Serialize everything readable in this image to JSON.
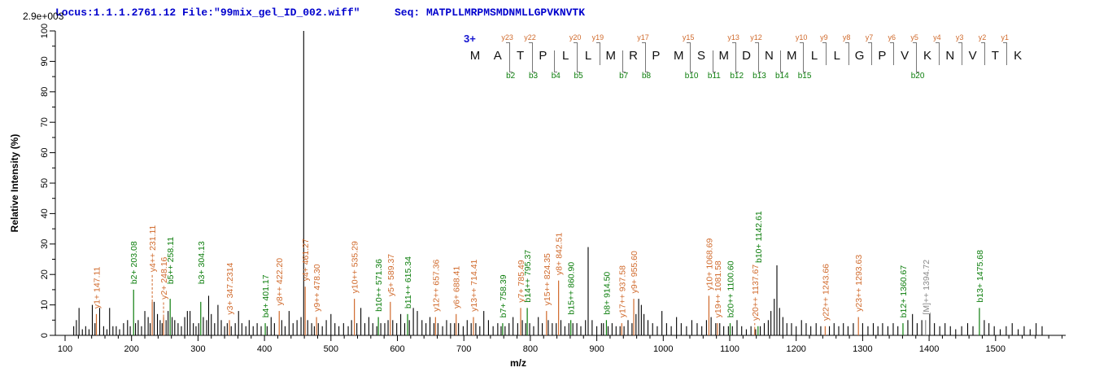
{
  "header": {
    "locus_file": "Locus:1.1.1.2761.12 File:\"99mix_gel_ID_002.wiff\"",
    "seq_label": "Seq: MATPLLMRPMSMDNMLLGPVKNVTK",
    "intensity_scale": "2.9e+003"
  },
  "peptide": {
    "charge": "3+",
    "sequence": "MATPLLMRPMSMDNMLLGPVKNVTK",
    "fragments": [
      {
        "after": 2,
        "y": "y23",
        "b": "b2"
      },
      {
        "after": 3,
        "y": "y22",
        "b": "b3"
      },
      {
        "after": 4,
        "y": "",
        "b": "b4"
      },
      {
        "after": 5,
        "y": "y20",
        "b": "b5"
      },
      {
        "after": 6,
        "y": "y19",
        "b": ""
      },
      {
        "after": 7,
        "y": "",
        "b": "b7"
      },
      {
        "after": 8,
        "y": "y17",
        "b": "b8"
      },
      {
        "after": 10,
        "y": "y15",
        "b": "b10"
      },
      {
        "after": 11,
        "y": "",
        "b": "b11"
      },
      {
        "after": 12,
        "y": "y13",
        "b": "b12"
      },
      {
        "after": 13,
        "y": "y12",
        "b": "b13"
      },
      {
        "after": 14,
        "y": "",
        "b": "b14"
      },
      {
        "after": 15,
        "y": "y10",
        "b": "b15"
      },
      {
        "after": 16,
        "y": "y9",
        "b": ""
      },
      {
        "after": 17,
        "y": "y8",
        "b": ""
      },
      {
        "after": 18,
        "y": "y7",
        "b": ""
      },
      {
        "after": 19,
        "y": "y6",
        "b": ""
      },
      {
        "after": 20,
        "y": "y5",
        "b": "b20"
      },
      {
        "after": 21,
        "y": "y4",
        "b": ""
      },
      {
        "after": 22,
        "y": "y3",
        "b": ""
      },
      {
        "after": 23,
        "y": "y2",
        "b": ""
      },
      {
        "after": 24,
        "y": "y1",
        "b": ""
      }
    ]
  },
  "chart_data": {
    "type": "bar",
    "subtype": "mass-spectrum",
    "title": "",
    "xlabel": "m/z",
    "ylabel": "Relative Intensity (%)",
    "xlim": [
      85,
      1605
    ],
    "ylim": [
      0,
      100
    ],
    "x_major_tick_start": 100,
    "x_major_tick_step": 100,
    "x_major_tick_end": 1500,
    "x_minor_tick_step": 20,
    "y_major_tick_step": 10,
    "y_minor_tick_step": 5,
    "grid": false,
    "colors": {
      "y": "#d06a2c",
      "b": "#0b7d0b",
      "M": "#8a8a8a",
      "peak": "#000000",
      "axis": "#000000"
    },
    "labeled_ions": [
      {
        "ion": "y1+",
        "mass": "147.11",
        "mz": 147.11,
        "series": "y",
        "h": 7,
        "label_y": 8,
        "dashed": false
      },
      {
        "ion": "b2+",
        "mass": "203.08",
        "mz": 203.08,
        "series": "b",
        "h": 15,
        "label_y": 16,
        "dashed": false
      },
      {
        "ion": "y4++",
        "mass": "231.11",
        "mz": 231.11,
        "series": "y",
        "h": 11,
        "label_y": 20,
        "dashed": true
      },
      {
        "ion": "y2+",
        "mass": "248.16",
        "mz": 248.16,
        "series": "y",
        "h": 6,
        "label_y": 11,
        "dashed": true
      },
      {
        "ion": "b5++",
        "mass": "258.11",
        "mz": 258.11,
        "series": "b",
        "h": 12,
        "label_y": 16,
        "dashed": false
      },
      {
        "ion": "b3+",
        "mass": "304.13",
        "mz": 304.13,
        "series": "b",
        "h": 11,
        "label_y": 16,
        "dashed": false
      },
      {
        "ion": "y3+",
        "mass": "347.2314",
        "mz": 347.23,
        "series": "y",
        "h": 5,
        "label_y": 6,
        "dashed": false
      },
      {
        "ion": "b4+",
        "mass": "401.17",
        "mz": 401.17,
        "series": "b",
        "h": 4,
        "label_y": 5,
        "dashed": false
      },
      {
        "ion": "y8++",
        "mass": "422.20",
        "mz": 422.2,
        "series": "y",
        "h": 8,
        "label_y": 9,
        "dashed": false
      },
      {
        "ion": "y4+",
        "mass": "461.27",
        "mz": 461.27,
        "series": "y",
        "h": 16,
        "label_y": 17,
        "dashed": false
      },
      {
        "ion": "y9++",
        "mass": "478.30",
        "mz": 478.3,
        "series": "y",
        "h": 6,
        "label_y": 7,
        "dashed": false
      },
      {
        "ion": "y10++",
        "mass": "535.29",
        "mz": 535.29,
        "series": "y",
        "h": 12,
        "label_y": 13,
        "dashed": false
      },
      {
        "ion": "b10++",
        "mass": "571.36",
        "mz": 571.36,
        "series": "b",
        "h": 6,
        "label_y": 7,
        "dashed": false
      },
      {
        "ion": "y5+",
        "mass": "589.37",
        "mz": 589.37,
        "series": "y",
        "h": 11,
        "label_y": 12,
        "dashed": false
      },
      {
        "ion": "b11++",
        "mass": "615.34",
        "mz": 615.34,
        "series": "b",
        "h": 7,
        "label_y": 8,
        "dashed": false
      },
      {
        "ion": "y12++",
        "mass": "657.36",
        "mz": 657.36,
        "series": "y",
        "h": 6,
        "label_y": 7,
        "dashed": false
      },
      {
        "ion": "y6+",
        "mass": "688.41",
        "mz": 688.41,
        "series": "y",
        "h": 7,
        "label_y": 8,
        "dashed": false
      },
      {
        "ion": "y13++",
        "mass": "714.41",
        "mz": 714.41,
        "series": "y",
        "h": 6,
        "label_y": 7,
        "dashed": false
      },
      {
        "ion": "b7+",
        "mass": "758.39",
        "mz": 758.39,
        "series": "b",
        "h": 4,
        "label_y": 5,
        "dashed": false
      },
      {
        "ion": "y7+",
        "mass": "785.49",
        "mz": 785.49,
        "series": "y",
        "h": 9,
        "label_y": 10,
        "dashed": false
      },
      {
        "ion": "b14++",
        "mass": "795.37",
        "mz": 795.37,
        "series": "b",
        "h": 9,
        "label_y": 10,
        "dashed": false
      },
      {
        "ion": "y15++",
        "mass": "824.35",
        "mz": 824.35,
        "series": "y",
        "h": 8,
        "label_y": 9,
        "dashed": false
      },
      {
        "ion": "y8+",
        "mass": "842.51",
        "mz": 842.51,
        "series": "y",
        "h": 18,
        "label_y": 19,
        "dashed": false
      },
      {
        "ion": "b15++",
        "mass": "860.90",
        "mz": 860.9,
        "series": "b",
        "h": 5,
        "label_y": 6,
        "dashed": false
      },
      {
        "ion": "b8+",
        "mass": "914.50",
        "mz": 914.5,
        "series": "b",
        "h": 5,
        "label_y": 6,
        "dashed": false
      },
      {
        "ion": "y17++",
        "mass": "937.58",
        "mz": 937.58,
        "series": "y",
        "h": 4,
        "label_y": 5,
        "dashed": false
      },
      {
        "ion": "y9+",
        "mass": "955.60",
        "mz": 955.6,
        "series": "y",
        "h": 12,
        "label_y": 13,
        "dashed": false
      },
      {
        "ion": "y10+",
        "mass": "1068.69",
        "mz": 1068.69,
        "series": "y",
        "h": 13,
        "label_y": 14,
        "dashed": false
      },
      {
        "ion": "y19++",
        "mass": "1081.58",
        "mz": 1081.58,
        "series": "y",
        "h": 4,
        "label_y": 5,
        "dashed": false
      },
      {
        "ion": "b20++",
        "mass": "1100.60",
        "mz": 1100.6,
        "series": "b",
        "h": 4,
        "label_y": 5,
        "dashed": false
      },
      {
        "ion": "y20++",
        "mass": "1137.67",
        "mz": 1137.67,
        "series": "y",
        "h": 2,
        "label_y": 4,
        "dashed": true
      },
      {
        "ion": "b10+",
        "mass": "1142.61",
        "mz": 1142.61,
        "series": "b",
        "h": 3,
        "label_y": 23,
        "dashed": false
      },
      {
        "ion": "y22++",
        "mass": "1243.66",
        "mz": 1243.66,
        "series": "y",
        "h": 3,
        "label_y": 4,
        "dashed": false
      },
      {
        "ion": "y23++",
        "mass": "1293.63",
        "mz": 1293.63,
        "series": "y",
        "h": 6,
        "label_y": 7,
        "dashed": false
      },
      {
        "ion": "b12+",
        "mass": "1360.67",
        "mz": 1360.67,
        "series": "b",
        "h": 4,
        "label_y": 5,
        "dashed": false
      },
      {
        "ion": "[M]++",
        "mass": "1394.72",
        "mz": 1394.72,
        "series": "M",
        "h": 5,
        "label_y": 6,
        "dashed": false
      },
      {
        "ion": "b13+",
        "mass": "1475.68",
        "mz": 1475.68,
        "series": "b",
        "h": 9,
        "label_y": 10,
        "dashed": false
      }
    ],
    "peaks": [
      [
        113,
        3
      ],
      [
        117,
        5
      ],
      [
        121,
        9
      ],
      [
        126,
        2
      ],
      [
        131,
        3
      ],
      [
        136,
        2
      ],
      [
        141,
        10
      ],
      [
        145,
        4
      ],
      [
        152,
        9
      ],
      [
        158,
        3
      ],
      [
        163,
        2
      ],
      [
        167,
        9
      ],
      [
        172,
        3
      ],
      [
        177,
        3
      ],
      [
        182,
        2
      ],
      [
        188,
        4
      ],
      [
        194,
        5
      ],
      [
        198,
        3
      ],
      [
        206,
        4
      ],
      [
        210,
        5
      ],
      [
        215,
        3
      ],
      [
        220,
        8
      ],
      [
        225,
        6
      ],
      [
        228,
        4
      ],
      [
        234,
        11
      ],
      [
        239,
        7
      ],
      [
        243,
        5
      ],
      [
        246,
        4
      ],
      [
        252,
        5
      ],
      [
        255,
        8
      ],
      [
        261,
        6
      ],
      [
        265,
        5
      ],
      [
        270,
        4
      ],
      [
        275,
        3
      ],
      [
        280,
        6
      ],
      [
        284,
        8
      ],
      [
        288,
        8
      ],
      [
        293,
        4
      ],
      [
        297,
        3
      ],
      [
        301,
        4
      ],
      [
        308,
        6
      ],
      [
        313,
        5
      ],
      [
        316,
        13
      ],
      [
        320,
        7
      ],
      [
        325,
        4
      ],
      [
        330,
        10
      ],
      [
        335,
        5
      ],
      [
        340,
        3
      ],
      [
        344,
        4
      ],
      [
        350,
        3
      ],
      [
        356,
        4
      ],
      [
        361,
        8
      ],
      [
        366,
        4
      ],
      [
        372,
        3
      ],
      [
        377,
        5
      ],
      [
        383,
        3
      ],
      [
        389,
        4
      ],
      [
        395,
        3
      ],
      [
        404,
        3
      ],
      [
        410,
        6
      ],
      [
        415,
        4
      ],
      [
        426,
        5
      ],
      [
        431,
        3
      ],
      [
        437,
        8
      ],
      [
        443,
        4
      ],
      [
        449,
        5
      ],
      [
        455,
        6
      ],
      [
        459,
        100
      ],
      [
        465,
        5
      ],
      [
        471,
        4
      ],
      [
        475,
        3
      ],
      [
        481,
        4
      ],
      [
        487,
        3
      ],
      [
        493,
        5
      ],
      [
        500,
        7
      ],
      [
        506,
        4
      ],
      [
        512,
        3
      ],
      [
        519,
        4
      ],
      [
        526,
        3
      ],
      [
        531,
        5
      ],
      [
        539,
        4
      ],
      [
        545,
        9
      ],
      [
        551,
        4
      ],
      [
        557,
        6
      ],
      [
        563,
        4
      ],
      [
        569,
        3
      ],
      [
        575,
        4
      ],
      [
        581,
        4
      ],
      [
        586,
        5
      ],
      [
        593,
        5
      ],
      [
        599,
        4
      ],
      [
        605,
        7
      ],
      [
        611,
        4
      ],
      [
        618,
        5
      ],
      [
        624,
        9
      ],
      [
        630,
        8
      ],
      [
        637,
        5
      ],
      [
        643,
        4
      ],
      [
        649,
        6
      ],
      [
        655,
        4
      ],
      [
        661,
        4
      ],
      [
        668,
        3
      ],
      [
        674,
        5
      ],
      [
        680,
        4
      ],
      [
        686,
        4
      ],
      [
        692,
        4
      ],
      [
        699,
        3
      ],
      [
        705,
        5
      ],
      [
        711,
        4
      ],
      [
        718,
        4
      ],
      [
        724,
        3
      ],
      [
        730,
        8
      ],
      [
        737,
        5
      ],
      [
        744,
        3
      ],
      [
        751,
        4
      ],
      [
        756,
        3
      ],
      [
        762,
        3
      ],
      [
        768,
        4
      ],
      [
        774,
        6
      ],
      [
        781,
        4
      ],
      [
        788,
        5
      ],
      [
        793,
        4
      ],
      [
        799,
        4
      ],
      [
        805,
        3
      ],
      [
        812,
        6
      ],
      [
        818,
        4
      ],
      [
        827,
        5
      ],
      [
        833,
        4
      ],
      [
        839,
        4
      ],
      [
        846,
        5
      ],
      [
        852,
        3
      ],
      [
        858,
        4
      ],
      [
        864,
        4
      ],
      [
        870,
        4
      ],
      [
        876,
        3
      ],
      [
        883,
        5
      ],
      [
        887,
        29
      ],
      [
        893,
        5
      ],
      [
        900,
        3
      ],
      [
        907,
        4
      ],
      [
        910,
        4
      ],
      [
        917,
        3
      ],
      [
        923,
        4
      ],
      [
        929,
        3
      ],
      [
        935,
        3
      ],
      [
        941,
        3
      ],
      [
        947,
        5
      ],
      [
        953,
        4
      ],
      [
        959,
        7
      ],
      [
        963,
        12
      ],
      [
        967,
        10
      ],
      [
        971,
        7
      ],
      [
        977,
        5
      ],
      [
        984,
        4
      ],
      [
        991,
        3
      ],
      [
        998,
        8
      ],
      [
        1005,
        4
      ],
      [
        1012,
        3
      ],
      [
        1020,
        6
      ],
      [
        1027,
        4
      ],
      [
        1035,
        3
      ],
      [
        1043,
        5
      ],
      [
        1051,
        4
      ],
      [
        1058,
        3
      ],
      [
        1065,
        5
      ],
      [
        1072,
        6
      ],
      [
        1079,
        4
      ],
      [
        1085,
        4
      ],
      [
        1091,
        3
      ],
      [
        1098,
        3
      ],
      [
        1104,
        3
      ],
      [
        1111,
        5
      ],
      [
        1118,
        3
      ],
      [
        1125,
        2
      ],
      [
        1132,
        3
      ],
      [
        1139,
        2
      ],
      [
        1146,
        3
      ],
      [
        1152,
        4
      ],
      [
        1158,
        5
      ],
      [
        1162,
        8
      ],
      [
        1167,
        12
      ],
      [
        1171,
        23
      ],
      [
        1175,
        9
      ],
      [
        1180,
        6
      ],
      [
        1186,
        4
      ],
      [
        1193,
        4
      ],
      [
        1200,
        3
      ],
      [
        1208,
        5
      ],
      [
        1215,
        4
      ],
      [
        1222,
        3
      ],
      [
        1230,
        4
      ],
      [
        1237,
        3
      ],
      [
        1250,
        3
      ],
      [
        1257,
        4
      ],
      [
        1264,
        3
      ],
      [
        1271,
        4
      ],
      [
        1278,
        3
      ],
      [
        1286,
        4
      ],
      [
        1300,
        4
      ],
      [
        1308,
        3
      ],
      [
        1316,
        4
      ],
      [
        1323,
        3
      ],
      [
        1330,
        4
      ],
      [
        1338,
        3
      ],
      [
        1346,
        4
      ],
      [
        1353,
        3
      ],
      [
        1368,
        5
      ],
      [
        1375,
        7
      ],
      [
        1382,
        4
      ],
      [
        1389,
        5
      ],
      [
        1401,
        7
      ],
      [
        1408,
        4
      ],
      [
        1416,
        3
      ],
      [
        1424,
        4
      ],
      [
        1432,
        3
      ],
      [
        1440,
        2
      ],
      [
        1449,
        3
      ],
      [
        1458,
        4
      ],
      [
        1466,
        3
      ],
      [
        1483,
        5
      ],
      [
        1490,
        4
      ],
      [
        1498,
        3
      ],
      [
        1507,
        2
      ],
      [
        1516,
        3
      ],
      [
        1525,
        4
      ],
      [
        1534,
        2
      ],
      [
        1543,
        3
      ],
      [
        1552,
        2
      ],
      [
        1561,
        4
      ],
      [
        1570,
        3
      ]
    ]
  }
}
